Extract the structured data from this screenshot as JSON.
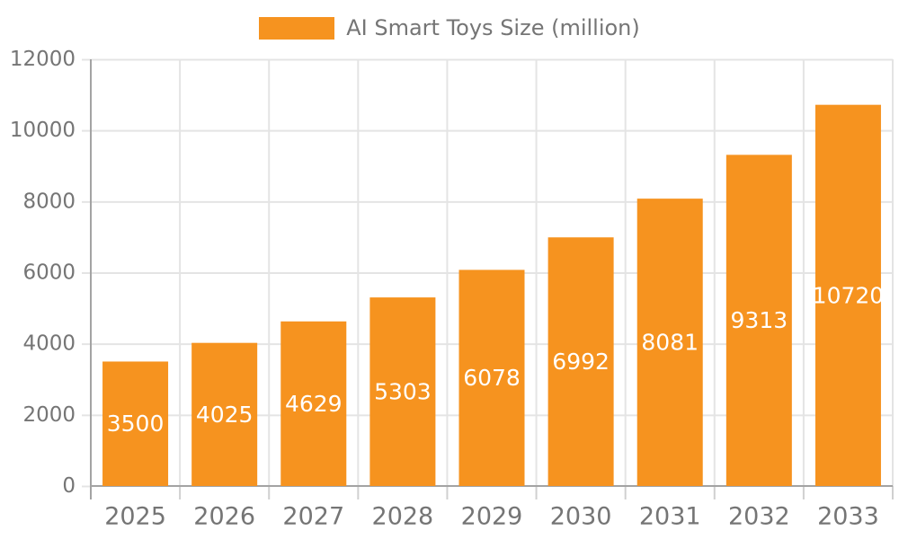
{
  "chart_data": {
    "type": "bar",
    "title": "AI Smart Toys Size (million)",
    "legend": {
      "label": "AI Smart Toys Size (million)",
      "position": "top-center"
    },
    "categories": [
      "2025",
      "2026",
      "2027",
      "2028",
      "2029",
      "2030",
      "2031",
      "2032",
      "2033"
    ],
    "series": [
      {
        "name": "AI Smart Toys Size (million)",
        "values": [
          3500,
          4025,
          4629,
          5303,
          6078,
          6992,
          8081,
          9313,
          10720
        ]
      }
    ],
    "xlabel": "",
    "ylabel": "",
    "ylim": [
      0,
      12000
    ],
    "ytick_step": 2000,
    "yticks": [
      0,
      2000,
      4000,
      6000,
      8000,
      10000,
      12000
    ],
    "grid": true,
    "value_labels": "inside-center-white",
    "colors": {
      "bar": "#F6931F",
      "value_label": "#FFFFFF",
      "axis_label": "#757575",
      "gridline": "#E4E4E4",
      "tick": "#D0D0D0",
      "axis_line": "#A3A3A3"
    }
  }
}
